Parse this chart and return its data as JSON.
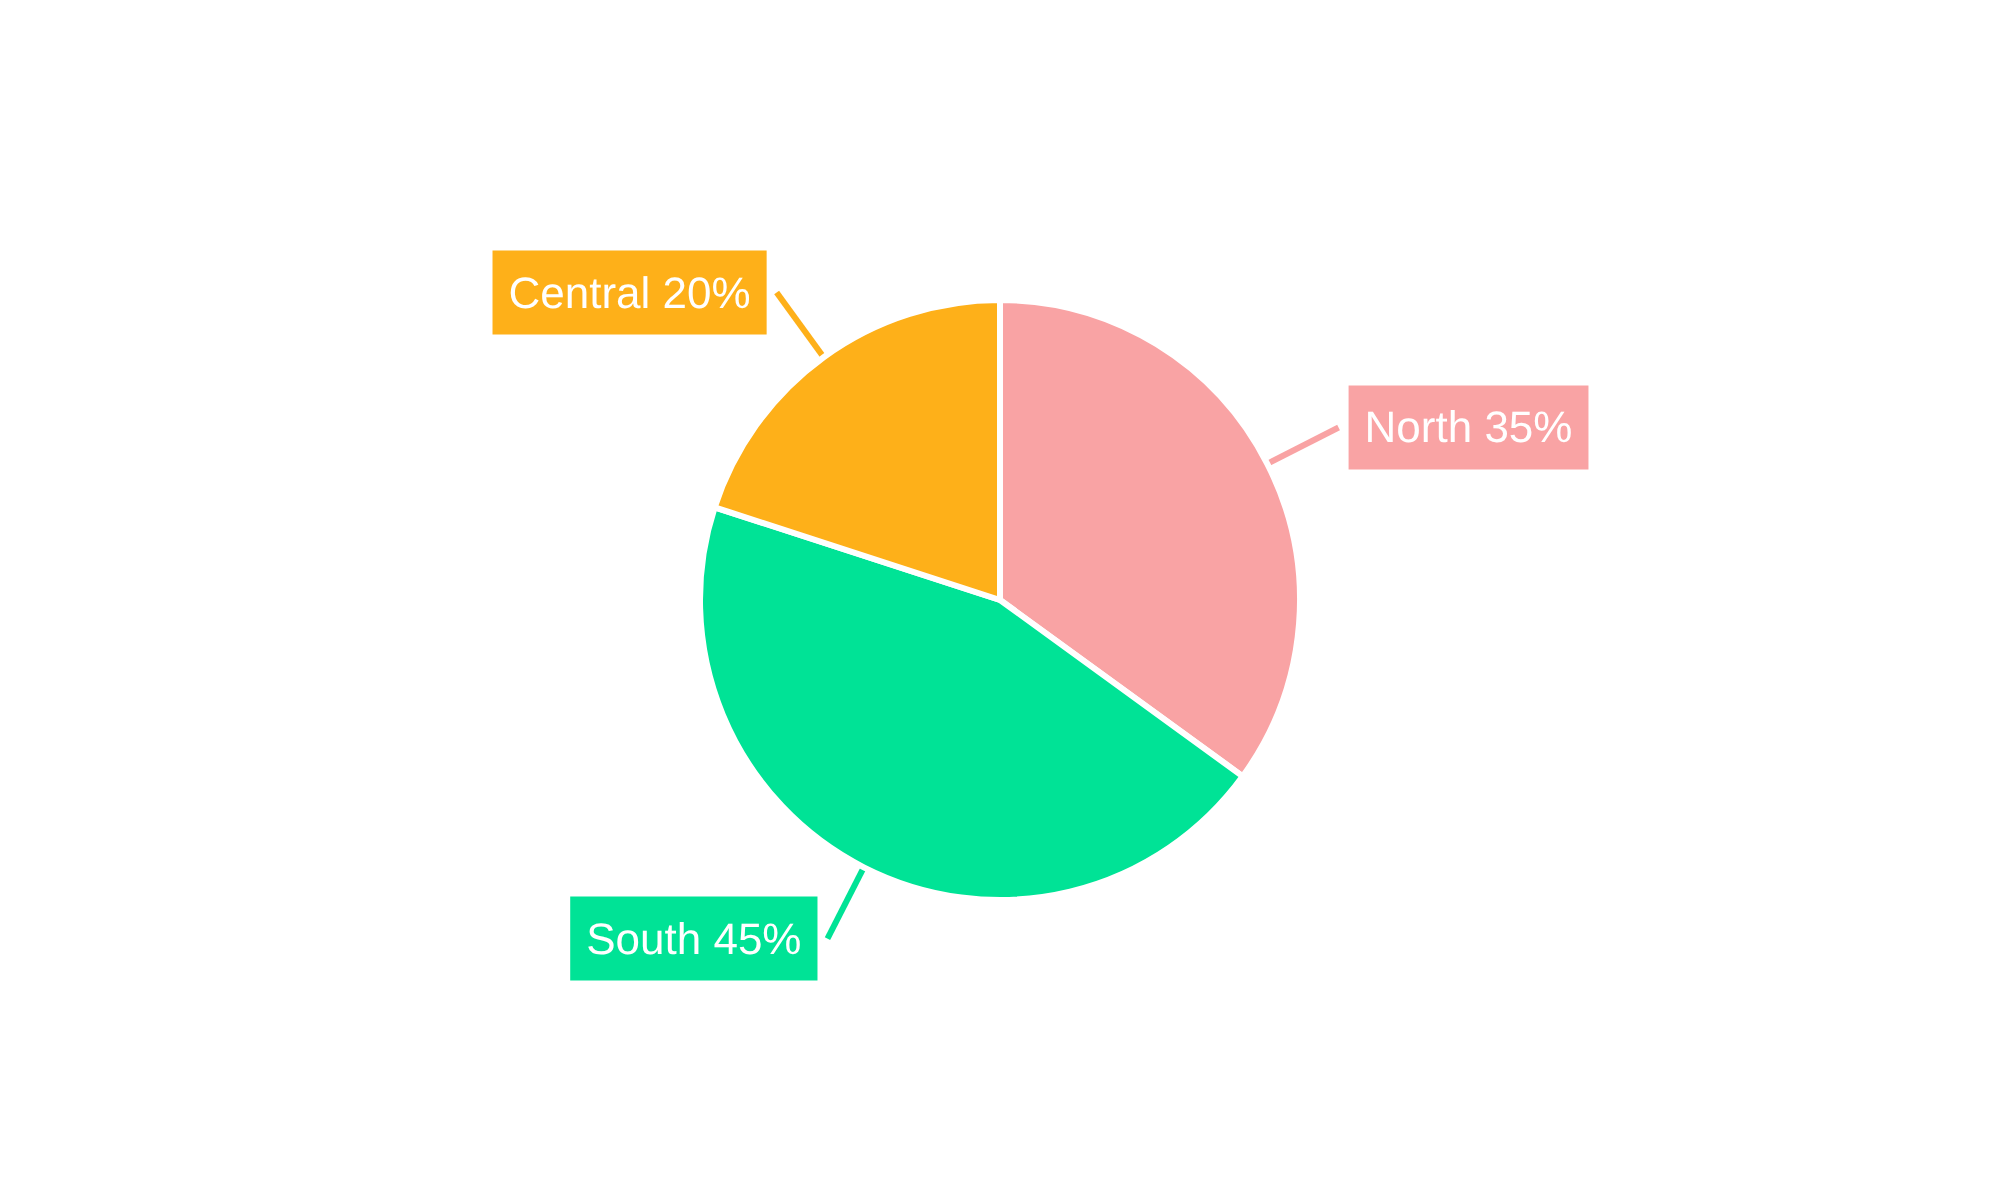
{
  "chart_data": {
    "type": "pie",
    "categories": [
      "North",
      "South",
      "Central"
    ],
    "values": [
      35,
      45,
      20
    ],
    "value_labels": [
      "35%",
      "45%",
      "20%"
    ],
    "colors": [
      "#f9a3a4",
      "#00e396",
      "#feb019"
    ],
    "legend": false
  }
}
